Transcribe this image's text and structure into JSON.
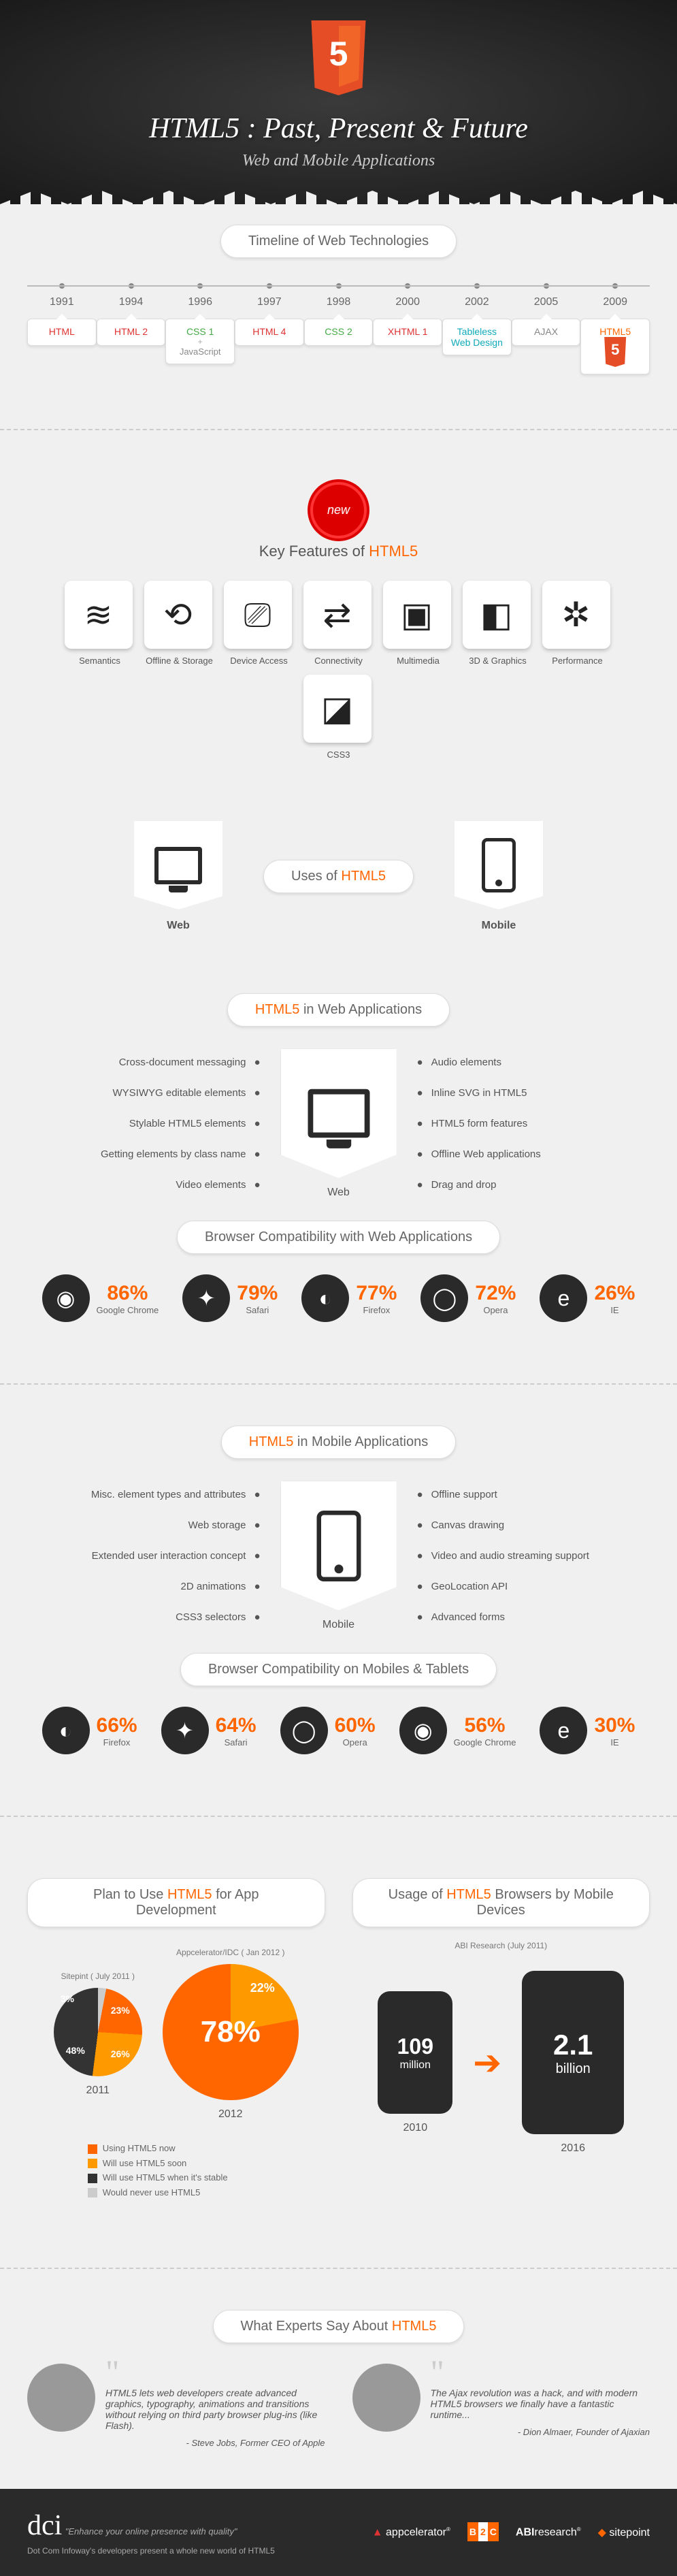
{
  "header": {
    "title": "HTML5 :  Past, Present & Future",
    "subtitle": "Web and Mobile Applications"
  },
  "timeline": {
    "title": "Timeline of Web Technologies",
    "items": [
      {
        "year": "1991",
        "label": "HTML",
        "color": "red"
      },
      {
        "year": "1994",
        "label": "HTML 2",
        "color": "red"
      },
      {
        "year": "1996",
        "label": "CSS 1",
        "extra": "+",
        "extra2": "JavaScript",
        "color": "green"
      },
      {
        "year": "1997",
        "label": "HTML 4",
        "color": "red"
      },
      {
        "year": "1998",
        "label": "CSS 2",
        "color": "green"
      },
      {
        "year": "2000",
        "label": "XHTML 1",
        "color": "red"
      },
      {
        "year": "2002",
        "label": "Tableless Web Design",
        "color": "teal"
      },
      {
        "year": "2005",
        "label": "AJAX",
        "color": "gray"
      },
      {
        "year": "2009",
        "label": "HTML5",
        "color": "orange",
        "shield": true
      }
    ]
  },
  "features": {
    "title_prefix": "Key Features of ",
    "title_accent": "HTML5",
    "badge": "new",
    "items": [
      {
        "label": "Semantics",
        "glyph": "≋"
      },
      {
        "label": "Offline & Storage",
        "glyph": "⟲"
      },
      {
        "label": "Device Access",
        "glyph": "⎚"
      },
      {
        "label": "Connectivity",
        "glyph": "⇄"
      },
      {
        "label": "Multimedia",
        "glyph": "▣"
      },
      {
        "label": "3D & Graphics",
        "glyph": "◧"
      },
      {
        "label": "Performance",
        "glyph": "✲"
      },
      {
        "label": "CSS3",
        "glyph": "◪"
      }
    ]
  },
  "uses": {
    "title_prefix": "Uses of ",
    "title_accent": "HTML5",
    "web": "Web",
    "mobile": "Mobile"
  },
  "webapps": {
    "title_accent": "HTML5",
    "title_suffix": " in Web Applications",
    "center": "Web",
    "left": [
      "Cross-document messaging",
      "WYSIWYG editable elements",
      "Stylable HTML5 elements",
      "Getting elements by class name",
      "Video elements"
    ],
    "right": [
      "Audio elements",
      "Inline SVG in HTML5",
      "HTML5 form features",
      "Offline Web applications",
      "Drag and drop"
    ]
  },
  "webcompat": {
    "title": "Browser Compatibility with Web Applications",
    "items": [
      {
        "name": "Google Chrome",
        "pct": "86%",
        "glyph": "◉"
      },
      {
        "name": "Safari",
        "pct": "79%",
        "glyph": "✦"
      },
      {
        "name": "Firefox",
        "pct": "77%",
        "glyph": "◐"
      },
      {
        "name": "Opera",
        "pct": "72%",
        "glyph": "◯"
      },
      {
        "name": "IE",
        "pct": "26%",
        "glyph": "e"
      }
    ]
  },
  "mobapps": {
    "title_accent": "HTML5",
    "title_suffix": " in Mobile Applications",
    "center": "Mobile",
    "left": [
      "Misc. element types and attributes",
      "Web storage",
      "Extended user interaction concept",
      "2D animations",
      "CSS3 selectors"
    ],
    "right": [
      "Offline support",
      "Canvas drawing",
      "Video and audio streaming support",
      "GeoLocation API",
      "Advanced forms"
    ]
  },
  "mobcompat": {
    "title": "Browser Compatibility on Mobiles & Tablets",
    "items": [
      {
        "name": "Firefox",
        "pct": "66%",
        "glyph": "◐"
      },
      {
        "name": "Safari",
        "pct": "64%",
        "glyph": "✦"
      },
      {
        "name": "Opera",
        "pct": "60%",
        "glyph": "◯"
      },
      {
        "name": "Google Chrome",
        "pct": "56%",
        "glyph": "◉"
      },
      {
        "name": "IE",
        "pct": "30%",
        "glyph": "e"
      }
    ]
  },
  "plan": {
    "title_prefix": "Plan to Use ",
    "title_accent": "HTML5",
    "title_suffix": " for App Development",
    "pie2011": {
      "src": "Sitepint  ( July 2011 )",
      "year": "2011",
      "segs": [
        {
          "v": "3%",
          "c": "#ccc"
        },
        {
          "v": "23%",
          "c": "#f60"
        },
        {
          "v": "26%",
          "c": "#f90"
        },
        {
          "v": "48%",
          "c": "#333"
        }
      ]
    },
    "pie2012": {
      "src": "Appcelerator/IDC  ( Jan 2012 )",
      "year": "2012",
      "big": "78%",
      "small": "22%"
    },
    "legend": [
      {
        "c": "#f60",
        "t": "Using HTML5 now"
      },
      {
        "c": "#f90",
        "t": "Will use HTML5 soon"
      },
      {
        "c": "#333",
        "t": "Will use HTML5 when it's stable"
      },
      {
        "c": "#ccc",
        "t": "Would never use HTML5"
      }
    ]
  },
  "usage": {
    "title_prefix": "Usage of ",
    "title_accent": "HTML5",
    "title_suffix": " Browsers by Mobile Devices",
    "src": "ABI Research (July 2011)",
    "p2010": {
      "v": "109",
      "u": "million",
      "y": "2010"
    },
    "p2016": {
      "v": "2.1",
      "u": "billion",
      "y": "2016"
    }
  },
  "experts": {
    "title_prefix": "What Experts Say About ",
    "title_accent": "HTML5",
    "q1": {
      "text": "HTML5 lets web developers create advanced graphics, typography, animations and transitions without relying on third party browser plug-ins (like Flash).",
      "author": "- Steve Jobs, Former CEO of Apple"
    },
    "q2": {
      "text": "The Ajax revolution was a hack, and with modern HTML5 browsers we finally have a fantastic runtime...",
      "author": "- Dion Almaer, Founder of Ajaxian"
    }
  },
  "footer": {
    "brand": "dci",
    "tag": "\"Enhance your online presence with quality\"",
    "desc": "Dot Com Infoway's developers present a whole new world of HTML5",
    "sponsors": [
      "appcelerator",
      "B2C",
      "ABIresearch",
      "sitepoint"
    ]
  }
}
